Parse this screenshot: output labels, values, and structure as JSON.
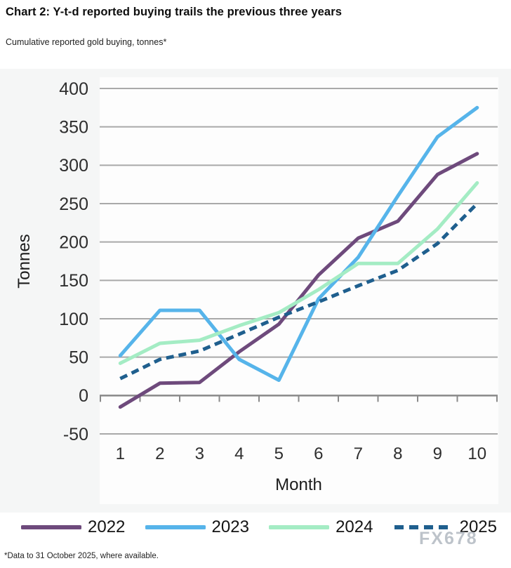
{
  "page": {
    "title": "Chart 2: Y-t-d reported buying trails the previous three years",
    "subtitle": "Cumulative reported gold buying, tonnes*",
    "footnote": "*Data to 31 October 2025, where available.",
    "watermark": "FX678"
  },
  "chart_data": {
    "type": "line",
    "x": [
      1,
      2,
      3,
      4,
      5,
      6,
      7,
      8,
      9,
      10
    ],
    "xlabel": "Month",
    "ylabel": "Tonnes",
    "ylim": [
      -50,
      400
    ],
    "ytick_step": 50,
    "yticks": [
      400,
      350,
      300,
      250,
      200,
      150,
      100,
      50,
      0,
      -50
    ],
    "grid": true,
    "legend_position": "bottom",
    "axis_text_color": "#2e2e2e",
    "grid_color": "#a9a9a9",
    "series": [
      {
        "name": "2022",
        "color": "#6e4a7c",
        "style": "solid",
        "values": [
          -15,
          16,
          17,
          57,
          93,
          157,
          205,
          227,
          288,
          315
        ]
      },
      {
        "name": "2023",
        "color": "#56b4ea",
        "style": "solid",
        "values": [
          52,
          111,
          111,
          47,
          20,
          126,
          180,
          260,
          337,
          375
        ]
      },
      {
        "name": "2024",
        "color": "#a4ecc4",
        "style": "solid",
        "values": [
          42,
          68,
          72,
          91,
          108,
          138,
          172,
          172,
          217,
          277
        ]
      },
      {
        "name": "2025",
        "color": "#1f5f8e",
        "style": "dashed",
        "values": [
          22,
          47,
          58,
          80,
          102,
          122,
          143,
          163,
          198,
          250
        ]
      }
    ]
  }
}
